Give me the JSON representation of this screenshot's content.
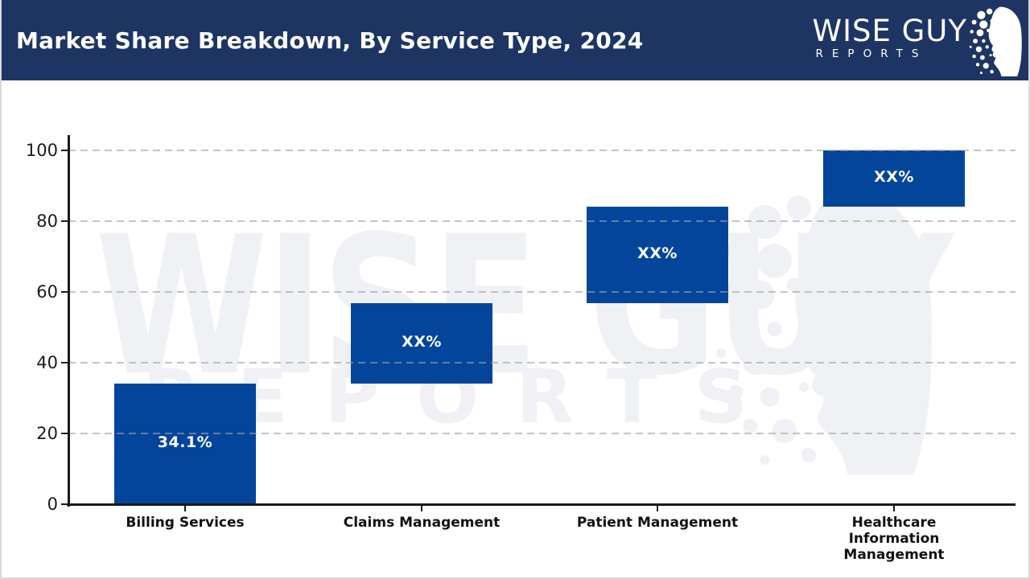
{
  "header": {
    "title": "Market Share Breakdown, By Service Type, 2024",
    "logo": {
      "name": "WISE GUY",
      "tagline": "REPORTS"
    }
  },
  "watermark": {
    "brand": "WISE GUY",
    "tagline": "REPORTS"
  },
  "chart_data": {
    "type": "bar",
    "variant": "stepped-waterfall",
    "title": "Market Share Breakdown, By Service Type, 2024",
    "categories": [
      "Billing Services",
      "Claims Management",
      "Patient Management",
      "Healthcare Information Management"
    ],
    "categories_display": [
      "Billing Services",
      "Claims Management",
      "Patient Management",
      "Healthcare\nInformation\nManagement"
    ],
    "segments": [
      {
        "category": "Billing Services",
        "start": 0,
        "end": 34.1,
        "label": "34.1%"
      },
      {
        "category": "Claims Management",
        "start": 34.1,
        "end": 56.8,
        "label": "XX%"
      },
      {
        "category": "Patient Management",
        "start": 56.8,
        "end": 84.1,
        "label": "XX%"
      },
      {
        "category": "Healthcare Information Management",
        "start": 84.1,
        "end": 100,
        "label": "XX%"
      }
    ],
    "xlabel": "",
    "ylabel": "",
    "ylim": [
      0,
      100
    ],
    "yticks": [
      0,
      20,
      40,
      60,
      80,
      100
    ],
    "grid": {
      "horizontal": true,
      "style": "dashed"
    },
    "legend": null,
    "colors": {
      "bar": "#04459c",
      "bar_label": "#ffffff",
      "axis": "#1a1a1a",
      "grid": "#ababab"
    }
  },
  "colors": {
    "header_bg": "#1e3563",
    "page_bg": "#ffffff",
    "watermark": "#eff1f4",
    "border": "#d9d9d9"
  }
}
